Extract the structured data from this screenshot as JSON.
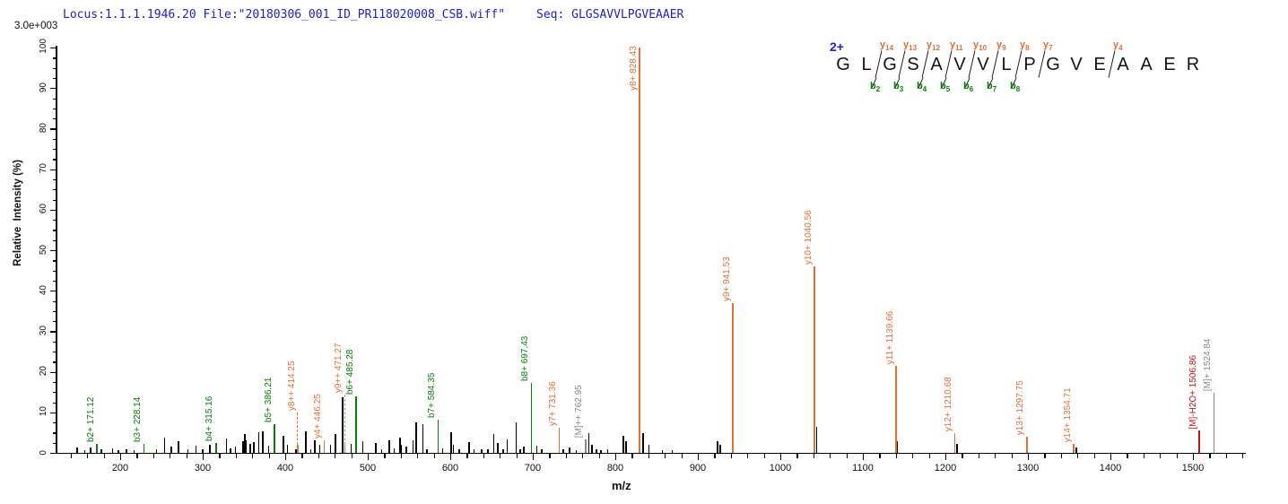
{
  "header": {
    "locus_file": "Locus:1.1.1.1946.20 File:\"20180306_001_ID_PR118020008_CSB.wiff\"",
    "seq": "Seq: GLGSAVVLPGVEAAER"
  },
  "axes": {
    "scale_label": "3.0e+003",
    "y_label": "Relative  Intensity (%)",
    "x_label": "m/z"
  },
  "sequence_panel": {
    "charge": "2+",
    "residues": [
      "G",
      "L",
      "G",
      "S",
      "A",
      "V",
      "V",
      "L",
      "P",
      "G",
      "V",
      "E",
      "A",
      "A",
      "E",
      "R"
    ],
    "cleavages": [
      {
        "after": 2,
        "y": "y",
        "y_n": "14",
        "b": "b",
        "b_n": "2"
      },
      {
        "after": 3,
        "y": "y",
        "y_n": "13",
        "b": "b",
        "b_n": "3"
      },
      {
        "after": 4,
        "y": "y",
        "y_n": "12",
        "b": "b",
        "b_n": "4"
      },
      {
        "after": 5,
        "y": "y",
        "y_n": "11",
        "b": "b",
        "b_n": "5"
      },
      {
        "after": 6,
        "y": "y",
        "y_n": "10",
        "b": "b",
        "b_n": "6"
      },
      {
        "after": 7,
        "y": "y",
        "y_n": "9",
        "b": "b",
        "b_n": "7"
      },
      {
        "after": 8,
        "y": "y",
        "y_n": "8",
        "b": "b",
        "b_n": "8"
      },
      {
        "after": 9,
        "y": "y",
        "y_n": "7",
        "b": null,
        "b_n": null
      },
      {
        "after": 12,
        "y": "y",
        "y_n": "4",
        "b": null,
        "b_n": null
      }
    ]
  },
  "chart_data": {
    "type": "bar",
    "subtype": "centroided MS/MS mass spectrum (stick plot)",
    "title": "",
    "xlabel": "m/z",
    "ylabel": "Relative  Intensity (%)",
    "xlim": [
      122,
      1562
    ],
    "ylim": [
      0,
      100
    ],
    "x_major_ticks": [
      200,
      300,
      400,
      500,
      600,
      700,
      800,
      900,
      1000,
      1100,
      1200,
      1300,
      1400,
      1500
    ],
    "x_minor_tick_step": 20,
    "y_major_ticks": [
      0,
      10,
      20,
      30,
      40,
      50,
      60,
      70,
      80,
      90,
      100
    ],
    "y_minor_tick_step": 2.5,
    "grid": false,
    "legend": false,
    "series": [
      {
        "name": "b-ions",
        "color": "#0a7d0a",
        "points": [
          {
            "mz": 171.12,
            "i": 2.2,
            "label": "b2+ 171.12"
          },
          {
            "mz": 228.14,
            "i": 2.2,
            "label": "b3+ 228.14"
          },
          {
            "mz": 315.16,
            "i": 2.5,
            "label": "b4+ 315.16"
          },
          {
            "mz": 386.21,
            "i": 7.0,
            "label": "b5+ 386.21"
          },
          {
            "mz": 485.28,
            "i": 14.0,
            "label": "b6+ 485.28"
          },
          {
            "mz": 584.35,
            "i": 8.2,
            "label": "b7+ 584.35"
          },
          {
            "mz": 697.43,
            "i": 17.3,
            "label": "b8+ 697.43"
          }
        ]
      },
      {
        "name": "y-ions",
        "color": "#e0713a",
        "points": [
          {
            "mz": 414.25,
            "i": 2.0,
            "label": "y8++ 414.25",
            "leader": 36,
            "leader_color": "#e0713a"
          },
          {
            "mz": 446.25,
            "i": 3.2,
            "label": "y4+ 446.25"
          },
          {
            "mz": 471.27,
            "i": 2.0,
            "label": "y9++ 471.27",
            "leader": 56,
            "leader_color": "#9a9a9a"
          },
          {
            "mz": 731.36,
            "i": 6.2,
            "label": "y7+ 731.36"
          },
          {
            "mz": 828.43,
            "i": 100,
            "label": "y8+ 828.43"
          },
          {
            "mz": 941.53,
            "i": 37.0,
            "label": "y9+ 941.53"
          },
          {
            "mz": 1040.56,
            "i": 46.0,
            "label": "y10+ 1040.56"
          },
          {
            "mz": 1139.66,
            "i": 21.5,
            "label": "y11+ 1139.66"
          },
          {
            "mz": 1210.68,
            "i": 4.8,
            "label": "y12+ 1210.68"
          },
          {
            "mz": 1297.75,
            "i": 4.0,
            "label": "y13+ 1297.75"
          },
          {
            "mz": 1354.71,
            "i": 2.2,
            "label": "y14+ 1354.71"
          }
        ]
      },
      {
        "name": "precursor",
        "color": "#8a8a8a",
        "points": [
          {
            "mz": 762.95,
            "i": 3.3,
            "label": "[M]++ 762.95"
          },
          {
            "mz": 1524.84,
            "i": 14.8,
            "label": "[M]+ 1524.84"
          }
        ]
      },
      {
        "name": "neutral-loss",
        "color": "#bf1212",
        "points": [
          {
            "mz": 1506.86,
            "i": 5.5,
            "label": "[M]-H2O+ 1506.86"
          }
        ]
      },
      {
        "name": "unassigned",
        "color": "#000000",
        "points": [
          {
            "mz": 147,
            "i": 1.3
          },
          {
            "mz": 156,
            "i": 0.7
          },
          {
            "mz": 163,
            "i": 1.4
          },
          {
            "mz": 176,
            "i": 0.8
          },
          {
            "mz": 190,
            "i": 1.0
          },
          {
            "mz": 197,
            "i": 0.7
          },
          {
            "mz": 207,
            "i": 0.8
          },
          {
            "mz": 216,
            "i": 0.7
          },
          {
            "mz": 243,
            "i": 0.9
          },
          {
            "mz": 253,
            "i": 3.7
          },
          {
            "mz": 261,
            "i": 1.5
          },
          {
            "mz": 270,
            "i": 2.9
          },
          {
            "mz": 281,
            "i": 0.8
          },
          {
            "mz": 291,
            "i": 1.7
          },
          {
            "mz": 299,
            "i": 0.9
          },
          {
            "mz": 308,
            "i": 2.0
          },
          {
            "mz": 328,
            "i": 3.5
          },
          {
            "mz": 333,
            "i": 1.0
          },
          {
            "mz": 339,
            "i": 1.6
          },
          {
            "mz": 348,
            "i": 2.8
          },
          {
            "mz": 350,
            "i": 4.7
          },
          {
            "mz": 352,
            "i": 3.2
          },
          {
            "mz": 357,
            "i": 2.3
          },
          {
            "mz": 361,
            "i": 2.6
          },
          {
            "mz": 367,
            "i": 5.1
          },
          {
            "mz": 372,
            "i": 5.3
          },
          {
            "mz": 379,
            "i": 1.8
          },
          {
            "mz": 397,
            "i": 4.3
          },
          {
            "mz": 402,
            "i": 2.1
          },
          {
            "mz": 412,
            "i": 0.9
          },
          {
            "mz": 424,
            "i": 5.2
          },
          {
            "mz": 430,
            "i": 0.8
          },
          {
            "mz": 435,
            "i": 3.0
          },
          {
            "mz": 441,
            "i": 1.9
          },
          {
            "mz": 454,
            "i": 2.0
          },
          {
            "mz": 460,
            "i": 4.6
          },
          {
            "mz": 468.5,
            "i": 13.7
          },
          {
            "mz": 479,
            "i": 2.2
          },
          {
            "mz": 493,
            "i": 2.8
          },
          {
            "mz": 509,
            "i": 2.5
          },
          {
            "mz": 516,
            "i": 0.9
          },
          {
            "mz": 525,
            "i": 3.0
          },
          {
            "mz": 531,
            "i": 1.0
          },
          {
            "mz": 538,
            "i": 3.8
          },
          {
            "mz": 540,
            "i": 2.0
          },
          {
            "mz": 546,
            "i": 1.5
          },
          {
            "mz": 554,
            "i": 3.0
          },
          {
            "mz": 558,
            "i": 7.6
          },
          {
            "mz": 566,
            "i": 7.1
          },
          {
            "mz": 571,
            "i": 0.9
          },
          {
            "mz": 590,
            "i": 1.0
          },
          {
            "mz": 600,
            "i": 5.0
          },
          {
            "mz": 603,
            "i": 1.9
          },
          {
            "mz": 610,
            "i": 0.9
          },
          {
            "mz": 622,
            "i": 2.6
          },
          {
            "mz": 628,
            "i": 0.8
          },
          {
            "mz": 637,
            "i": 0.8
          },
          {
            "mz": 645,
            "i": 0.9
          },
          {
            "mz": 652,
            "i": 4.6
          },
          {
            "mz": 657,
            "i": 2.4
          },
          {
            "mz": 663,
            "i": 0.8
          },
          {
            "mz": 668,
            "i": 3.4
          },
          {
            "mz": 679,
            "i": 7.6
          },
          {
            "mz": 684,
            "i": 0.9
          },
          {
            "mz": 688,
            "i": 1.5
          },
          {
            "mz": 704,
            "i": 1.7
          },
          {
            "mz": 710,
            "i": 0.9
          },
          {
            "mz": 736,
            "i": 0.8
          },
          {
            "mz": 744,
            "i": 1.4
          },
          {
            "mz": 752,
            "i": 0.7
          },
          {
            "mz": 767,
            "i": 4.8
          },
          {
            "mz": 771,
            "i": 2.0
          },
          {
            "mz": 776,
            "i": 0.8
          },
          {
            "mz": 782,
            "i": 0.7
          },
          {
            "mz": 790,
            "i": 0.8
          },
          {
            "mz": 809,
            "i": 4.2
          },
          {
            "mz": 812,
            "i": 2.8
          },
          {
            "mz": 833,
            "i": 4.8
          },
          {
            "mz": 840,
            "i": 2.0
          },
          {
            "mz": 856,
            "i": 0.6
          },
          {
            "mz": 868,
            "i": 0.6
          },
          {
            "mz": 923,
            "i": 2.9
          },
          {
            "mz": 926,
            "i": 2.0
          },
          {
            "mz": 1043,
            "i": 6.5
          },
          {
            "mz": 1141,
            "i": 2.9
          },
          {
            "mz": 1213,
            "i": 2.2
          },
          {
            "mz": 1358,
            "i": 1.4
          }
        ]
      }
    ]
  }
}
